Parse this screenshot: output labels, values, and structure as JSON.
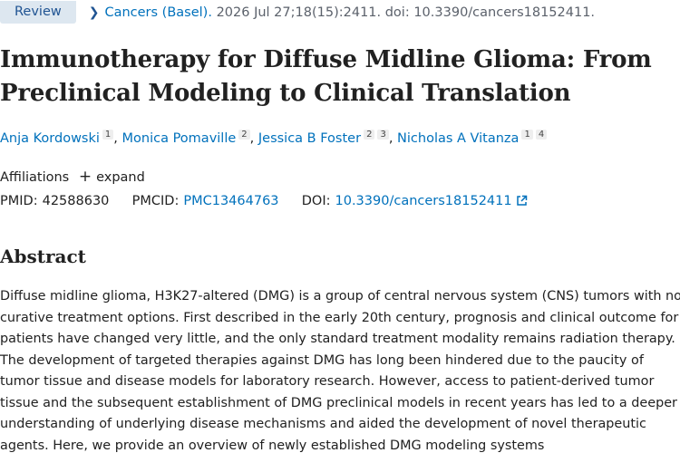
{
  "header": {
    "badge": "Review",
    "journal": "Cancers (Basel).",
    "citation": "2026 Jul 27;18(15):2411. doi: 10.3390/cancers18152411."
  },
  "article": {
    "title": "Immunotherapy for Diffuse Midline Glioma: From Preclinical Modeling to Clinical Translation",
    "authors": [
      {
        "name": "Anja Kordowski",
        "affs": [
          "1"
        ]
      },
      {
        "name": "Monica Pomaville",
        "affs": [
          "2"
        ]
      },
      {
        "name": "Jessica B Foster",
        "affs": [
          "2",
          "3"
        ]
      },
      {
        "name": "Nicholas A Vitanza",
        "affs": [
          "1",
          "4"
        ]
      }
    ],
    "affiliations_label": "Affiliations",
    "expand_label": "expand"
  },
  "ids": {
    "pmid_label": "PMID:",
    "pmid": "42588630",
    "pmcid_label": "PMCID:",
    "pmcid": "PMC13464763",
    "doi_label": "DOI:",
    "doi": "10.3390/cancers18152411"
  },
  "abstract": {
    "heading": "Abstract",
    "text": "Diffuse midline glioma, H3K27-altered (DMG) is a group of central nervous system (CNS) tumors with no curative treatment options. First described in the early 20th century, prognosis and clinical outcome for patients have changed very little, and the only standard treatment modality remains radiation therapy. The development of targeted therapies against DMG has long been hindered due to the paucity of tumor tissue and disease models for laboratory research. However, access to patient-derived tumor tissue and the subsequent establishment of DMG preclinical models in recent years has led to a deeper understanding of underlying disease mechanisms and aided the development of novel therapeutic agents. Here, we provide an overview of newly established DMG modeling systems"
  },
  "colors": {
    "link": "#0071bc",
    "badge_bg": "#dde7f0",
    "text": "#212121"
  }
}
